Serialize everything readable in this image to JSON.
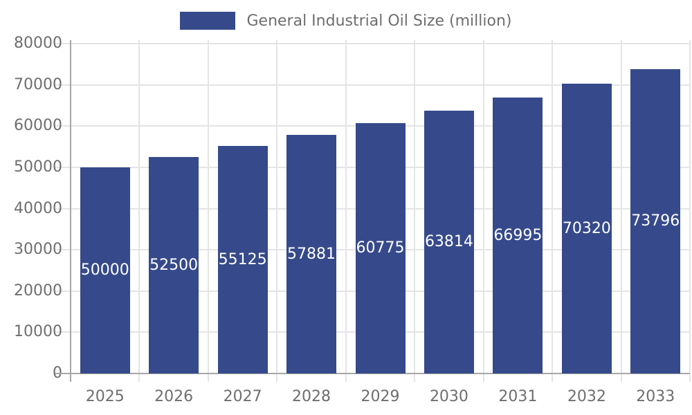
{
  "legend": {
    "label": "General Industrial Oil Size (million)"
  },
  "chart_data": {
    "type": "bar",
    "title": "",
    "xlabel": "",
    "ylabel": "",
    "legend_entries": [
      "General Industrial Oil Size (million)"
    ],
    "legend_position": "top-center",
    "categories": [
      "2025",
      "2026",
      "2027",
      "2028",
      "2029",
      "2030",
      "2031",
      "2032",
      "2033"
    ],
    "values": [
      50000,
      52500,
      55125,
      57881,
      60775,
      63814,
      66995,
      70320,
      73796
    ],
    "ylim": [
      0,
      80000
    ],
    "yticks": [
      0,
      10000,
      20000,
      30000,
      40000,
      50000,
      60000,
      70000,
      80000
    ],
    "grid": true,
    "bar_value_labels_inside": true,
    "colors": {
      "bar": "#364a8b",
      "bar_label_text": "#ffffff",
      "axis_text": "#6e6e6e",
      "grid_line": "#e4e4e4",
      "axis_line": "#a6a6a6",
      "background": "#ffffff"
    }
  }
}
